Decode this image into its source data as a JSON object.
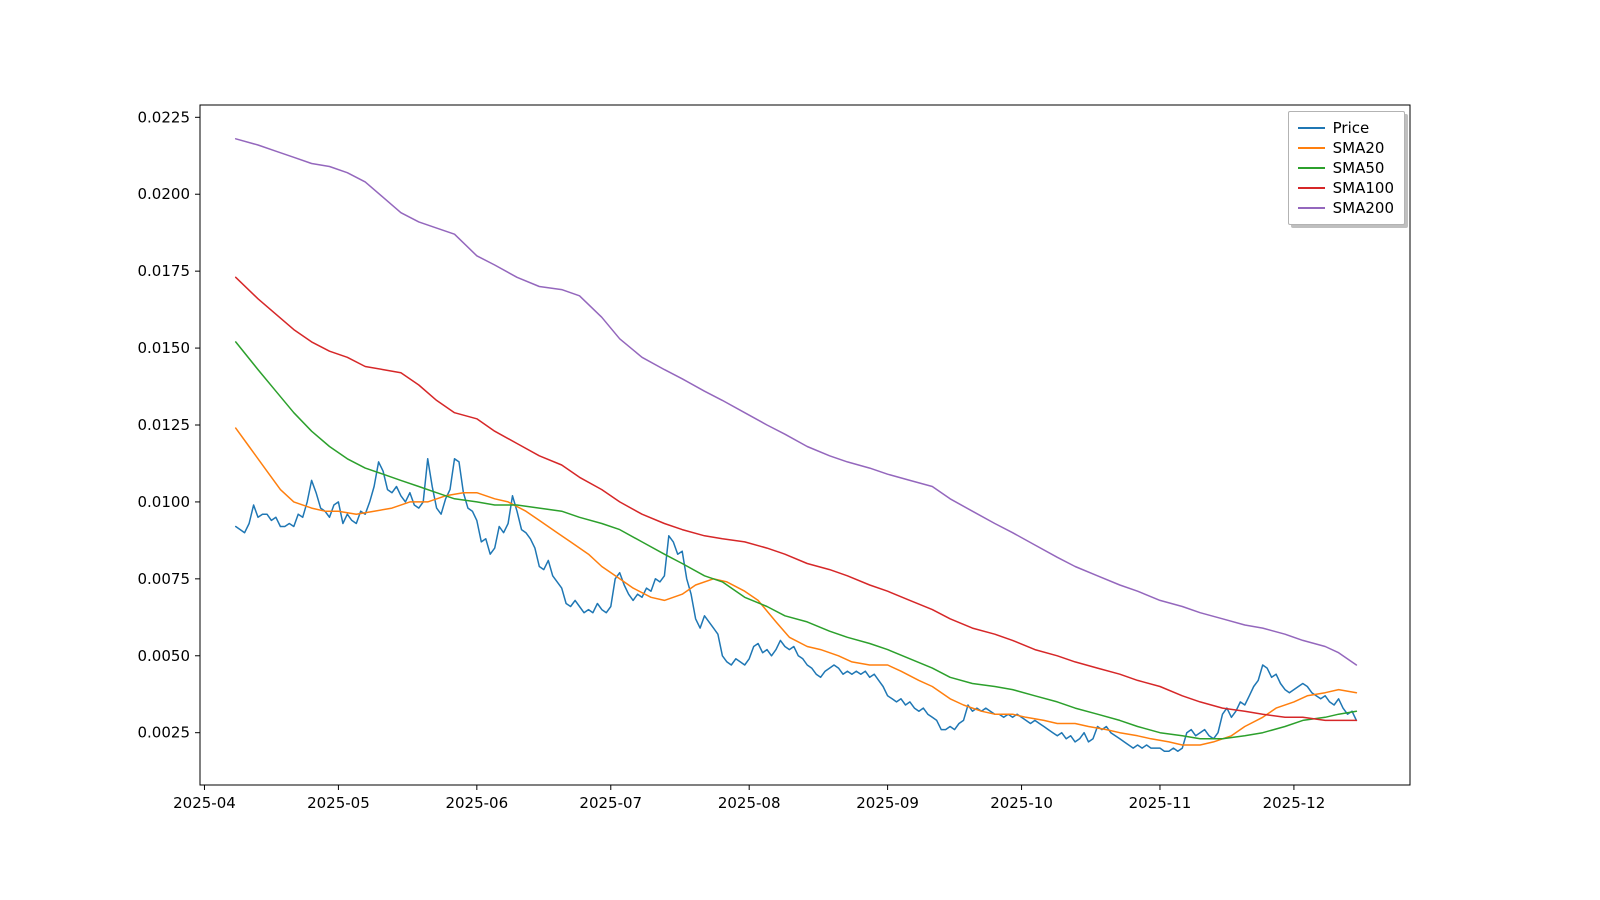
{
  "figure": {
    "background_color": "#ffffff",
    "spine_color": "#000000",
    "tick_label_color": "#000000"
  },
  "legend": {
    "entries": [
      "Price",
      "SMA20",
      "SMA50",
      "SMA100",
      "SMA200"
    ]
  },
  "chart_data": {
    "type": "line",
    "title": "",
    "xlabel": "",
    "ylabel": "",
    "x_unit": "days since 2025-04-01",
    "xlim_days": [
      -1,
      270
    ],
    "ylim": [
      0.0008,
      0.0229
    ],
    "grid": false,
    "legend_position": "upper right",
    "x_ticks": [
      {
        "label": "2025-04",
        "day": 0
      },
      {
        "label": "2025-05",
        "day": 30
      },
      {
        "label": "2025-06",
        "day": 61
      },
      {
        "label": "2025-07",
        "day": 91
      },
      {
        "label": "2025-08",
        "day": 122
      },
      {
        "label": "2025-09",
        "day": 153
      },
      {
        "label": "2025-10",
        "day": 183
      },
      {
        "label": "2025-11",
        "day": 214
      },
      {
        "label": "2025-12",
        "day": 244
      }
    ],
    "y_ticks": [
      {
        "label": "0.0025",
        "value": 0.0025
      },
      {
        "label": "0.0050",
        "value": 0.005
      },
      {
        "label": "0.0075",
        "value": 0.0075
      },
      {
        "label": "0.0100",
        "value": 0.01
      },
      {
        "label": "0.0125",
        "value": 0.0125
      },
      {
        "label": "0.0150",
        "value": 0.015
      },
      {
        "label": "0.0175",
        "value": 0.0175
      },
      {
        "label": "0.0200",
        "value": 0.02
      },
      {
        "label": "0.0225",
        "value": 0.0225
      }
    ],
    "series": [
      {
        "name": "Price",
        "color": "#1f77b4",
        "x0": 7,
        "dx": 1,
        "y": [
          0.0092,
          0.0091,
          0.009,
          0.0093,
          0.0099,
          0.0095,
          0.0096,
          0.0096,
          0.0094,
          0.0095,
          0.0092,
          0.0092,
          0.0093,
          0.0092,
          0.0096,
          0.0095,
          0.01,
          0.0107,
          0.0103,
          0.0098,
          0.0097,
          0.0095,
          0.0099,
          0.01,
          0.0093,
          0.0096,
          0.0094,
          0.0093,
          0.0097,
          0.0096,
          0.01,
          0.0105,
          0.0113,
          0.011,
          0.0104,
          0.0103,
          0.0105,
          0.0102,
          0.01,
          0.0103,
          0.0099,
          0.0098,
          0.01,
          0.0114,
          0.0105,
          0.0098,
          0.0096,
          0.0101,
          0.0104,
          0.0114,
          0.0113,
          0.0103,
          0.0098,
          0.0097,
          0.0094,
          0.0087,
          0.0088,
          0.0083,
          0.0085,
          0.0092,
          0.009,
          0.0093,
          0.0102,
          0.0097,
          0.0091,
          0.009,
          0.0088,
          0.0085,
          0.0079,
          0.0078,
          0.0081,
          0.0076,
          0.0074,
          0.0072,
          0.0067,
          0.0066,
          0.0068,
          0.0066,
          0.0064,
          0.0065,
          0.0064,
          0.0067,
          0.0065,
          0.0064,
          0.0066,
          0.0075,
          0.0077,
          0.0073,
          0.007,
          0.0068,
          0.007,
          0.0069,
          0.0072,
          0.0071,
          0.0075,
          0.0074,
          0.0076,
          0.0089,
          0.0087,
          0.0083,
          0.0084,
          0.0075,
          0.007,
          0.0062,
          0.0059,
          0.0063,
          0.0061,
          0.0059,
          0.0057,
          0.005,
          0.0048,
          0.0047,
          0.0049,
          0.0048,
          0.0047,
          0.0049,
          0.0053,
          0.0054,
          0.0051,
          0.0052,
          0.005,
          0.0052,
          0.0055,
          0.0053,
          0.0052,
          0.0053,
          0.005,
          0.0049,
          0.0047,
          0.0046,
          0.0044,
          0.0043,
          0.0045,
          0.0046,
          0.0047,
          0.0046,
          0.0044,
          0.0045,
          0.0044,
          0.0045,
          0.0044,
          0.0045,
          0.0043,
          0.0044,
          0.0042,
          0.004,
          0.0037,
          0.0036,
          0.0035,
          0.0036,
          0.0034,
          0.0035,
          0.0033,
          0.0032,
          0.0033,
          0.0031,
          0.003,
          0.0029,
          0.0026,
          0.0026,
          0.0027,
          0.0026,
          0.0028,
          0.0029,
          0.0034,
          0.0032,
          0.0033,
          0.0032,
          0.0033,
          0.0032,
          0.0031,
          0.0031,
          0.003,
          0.0031,
          0.003,
          0.0031,
          0.003,
          0.0029,
          0.0028,
          0.0029,
          0.0028,
          0.0027,
          0.0026,
          0.0025,
          0.0024,
          0.0025,
          0.0023,
          0.0024,
          0.0022,
          0.0023,
          0.0025,
          0.0022,
          0.0023,
          0.0027,
          0.0026,
          0.0027,
          0.0025,
          0.0024,
          0.0023,
          0.0022,
          0.0021,
          0.002,
          0.0021,
          0.002,
          0.0021,
          0.002,
          0.002,
          0.002,
          0.0019,
          0.0019,
          0.002,
          0.0019,
          0.002,
          0.0025,
          0.0026,
          0.0024,
          0.0025,
          0.0026,
          0.0024,
          0.0023,
          0.0025,
          0.0031,
          0.0033,
          0.003,
          0.0032,
          0.0035,
          0.0034,
          0.0037,
          0.004,
          0.0042,
          0.0047,
          0.0046,
          0.0043,
          0.0044,
          0.0041,
          0.0039,
          0.0038,
          0.0039,
          0.004,
          0.0041,
          0.004,
          0.0038,
          0.0037,
          0.0036,
          0.0037,
          0.0035,
          0.0034,
          0.0036,
          0.0033,
          0.0031,
          0.0032,
          0.0029
        ]
      },
      {
        "name": "SMA20",
        "color": "#ff7f0e",
        "x": [
          7,
          10,
          14,
          17,
          20,
          24,
          27,
          30,
          34,
          38,
          42,
          46,
          50,
          54,
          58,
          61,
          65,
          68,
          72,
          75,
          79,
          82,
          86,
          89,
          93,
          96,
          100,
          103,
          107,
          110,
          114,
          117,
          121,
          124,
          128,
          131,
          135,
          138,
          142,
          145,
          149,
          153,
          156,
          160,
          163,
          167,
          170,
          174,
          177,
          181,
          184,
          188,
          191,
          195,
          198,
          202,
          205,
          209,
          212,
          216,
          219,
          223,
          226,
          230,
          233,
          237,
          240,
          244,
          247,
          251,
          254,
          258
        ],
        "y": [
          0.0124,
          0.0118,
          0.011,
          0.0104,
          0.01,
          0.0098,
          0.0097,
          0.0097,
          0.0096,
          0.0097,
          0.0098,
          0.01,
          0.01,
          0.0102,
          0.0103,
          0.0103,
          0.0101,
          0.01,
          0.0097,
          0.0094,
          0.009,
          0.0087,
          0.0083,
          0.0079,
          0.0075,
          0.0072,
          0.0069,
          0.0068,
          0.007,
          0.0073,
          0.0075,
          0.0074,
          0.0071,
          0.0068,
          0.0061,
          0.0056,
          0.0053,
          0.0052,
          0.005,
          0.0048,
          0.0047,
          0.0047,
          0.0045,
          0.0042,
          0.004,
          0.0036,
          0.0034,
          0.0032,
          0.0031,
          0.0031,
          0.003,
          0.0029,
          0.0028,
          0.0028,
          0.0027,
          0.0026,
          0.0025,
          0.0024,
          0.0023,
          0.0022,
          0.0021,
          0.0021,
          0.0022,
          0.0024,
          0.0027,
          0.003,
          0.0033,
          0.0035,
          0.0037,
          0.0038,
          0.0039,
          0.0038
        ]
      },
      {
        "name": "SMA50",
        "color": "#2ca02c",
        "x": [
          7,
          12,
          16,
          20,
          24,
          28,
          32,
          36,
          40,
          44,
          48,
          52,
          56,
          61,
          65,
          70,
          75,
          80,
          84,
          89,
          93,
          98,
          103,
          107,
          112,
          116,
          121,
          126,
          130,
          135,
          140,
          144,
          149,
          153,
          158,
          163,
          167,
          172,
          177,
          181,
          186,
          191,
          195,
          200,
          205,
          209,
          214,
          219,
          223,
          228,
          233,
          237,
          242,
          246,
          251,
          254,
          258
        ],
        "y": [
          0.0152,
          0.0143,
          0.0136,
          0.0129,
          0.0123,
          0.0118,
          0.0114,
          0.0111,
          0.0109,
          0.0107,
          0.0105,
          0.0103,
          0.0101,
          0.01,
          0.0099,
          0.0099,
          0.0098,
          0.0097,
          0.0095,
          0.0093,
          0.0091,
          0.0087,
          0.0083,
          0.008,
          0.0076,
          0.0074,
          0.0069,
          0.0066,
          0.0063,
          0.0061,
          0.0058,
          0.0056,
          0.0054,
          0.0052,
          0.0049,
          0.0046,
          0.0043,
          0.0041,
          0.004,
          0.0039,
          0.0037,
          0.0035,
          0.0033,
          0.0031,
          0.0029,
          0.0027,
          0.0025,
          0.0024,
          0.0023,
          0.0023,
          0.0024,
          0.0025,
          0.0027,
          0.0029,
          0.003,
          0.0031,
          0.0032
        ]
      },
      {
        "name": "SMA100",
        "color": "#d62728",
        "x": [
          7,
          12,
          16,
          20,
          24,
          28,
          32,
          36,
          40,
          44,
          48,
          52,
          56,
          61,
          65,
          70,
          75,
          80,
          84,
          89,
          93,
          98,
          103,
          107,
          112,
          116,
          121,
          126,
          130,
          135,
          140,
          144,
          149,
          153,
          158,
          163,
          167,
          172,
          177,
          181,
          186,
          191,
          195,
          200,
          205,
          209,
          214,
          219,
          223,
          228,
          233,
          237,
          242,
          246,
          251,
          254,
          258
        ],
        "y": [
          0.0173,
          0.0166,
          0.0161,
          0.0156,
          0.0152,
          0.0149,
          0.0147,
          0.0144,
          0.0143,
          0.0142,
          0.0138,
          0.0133,
          0.0129,
          0.0127,
          0.0123,
          0.0119,
          0.0115,
          0.0112,
          0.0108,
          0.0104,
          0.01,
          0.0096,
          0.0093,
          0.0091,
          0.0089,
          0.0088,
          0.0087,
          0.0085,
          0.0083,
          0.008,
          0.0078,
          0.0076,
          0.0073,
          0.0071,
          0.0068,
          0.0065,
          0.0062,
          0.0059,
          0.0057,
          0.0055,
          0.0052,
          0.005,
          0.0048,
          0.0046,
          0.0044,
          0.0042,
          0.004,
          0.0037,
          0.0035,
          0.0033,
          0.0032,
          0.0031,
          0.003,
          0.003,
          0.0029,
          0.0029,
          0.0029
        ]
      },
      {
        "name": "SMA200",
        "color": "#9467bd",
        "x": [
          7,
          12,
          16,
          20,
          24,
          28,
          32,
          36,
          40,
          44,
          48,
          52,
          56,
          61,
          65,
          70,
          75,
          80,
          84,
          89,
          93,
          98,
          103,
          107,
          112,
          116,
          121,
          126,
          130,
          135,
          140,
          144,
          149,
          153,
          158,
          163,
          167,
          172,
          177,
          181,
          186,
          191,
          195,
          200,
          205,
          209,
          214,
          219,
          223,
          228,
          233,
          237,
          242,
          246,
          251,
          254,
          258
        ],
        "y": [
          0.0218,
          0.0216,
          0.0214,
          0.0212,
          0.021,
          0.0209,
          0.0207,
          0.0204,
          0.0199,
          0.0194,
          0.0191,
          0.0189,
          0.0187,
          0.018,
          0.0177,
          0.0173,
          0.017,
          0.0169,
          0.0167,
          0.016,
          0.0153,
          0.0147,
          0.0143,
          0.014,
          0.0136,
          0.0133,
          0.0129,
          0.0125,
          0.0122,
          0.0118,
          0.0115,
          0.0113,
          0.0111,
          0.0109,
          0.0107,
          0.0105,
          0.0101,
          0.0097,
          0.0093,
          0.009,
          0.0086,
          0.0082,
          0.0079,
          0.0076,
          0.0073,
          0.0071,
          0.0068,
          0.0066,
          0.0064,
          0.0062,
          0.006,
          0.0059,
          0.0057,
          0.0055,
          0.0053,
          0.0051,
          0.0047
        ]
      }
    ]
  }
}
